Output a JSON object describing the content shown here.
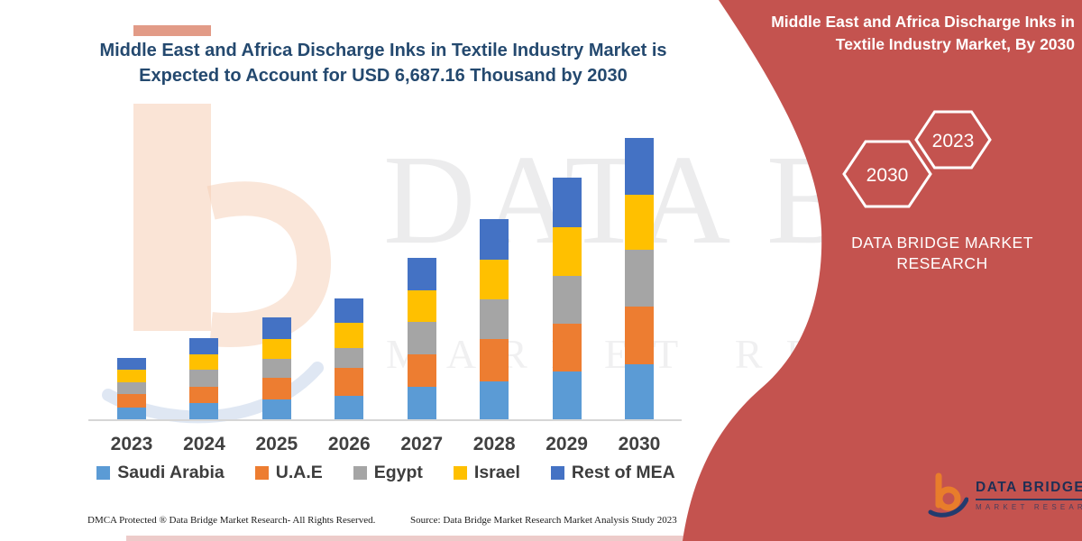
{
  "colors": {
    "panel_red": "#C4534F",
    "title_navy": "#24496F",
    "axis_gray": "#D6D6D6",
    "year_label_gray": "#404040",
    "legend_text_gray": "#3D3D3D",
    "logo_navy": "#1E2F55",
    "logo_orange": "#E87D2B",
    "watermark_peach": "#F6CDB4",
    "watermark_blue": "#B7C9E5"
  },
  "header": {
    "title_line1": "Middle East and Africa Discharge Inks in Textile Industry Market is",
    "title_line2": "Expected to Account for USD 6,687.16 Thousand by 2030"
  },
  "panel": {
    "title_line1": "Middle East and Africa Discharge Inks in",
    "title_line2": "Textile Industry Market, By 2030",
    "hexagon_left_label": "2030",
    "hexagon_right_label": "2023",
    "brand_line1": "DATA BRIDGE MARKET",
    "brand_line2": "RESEARCH"
  },
  "chart_data": {
    "type": "bar",
    "stacked": true,
    "stack_order": "bottom-to-top",
    "title": "Middle East and Africa Discharge Inks in Textile Industry Market is Expected to Account for USD 6,687.16 Thousand by 2030",
    "xlabel": "",
    "ylabel": "",
    "units": "USD Thousand",
    "ylim": [
      0,
      6700
    ],
    "gridlines": false,
    "legend_position": "bottom",
    "categories": [
      "2023",
      "2024",
      "2025",
      "2026",
      "2027",
      "2028",
      "2029",
      "2030"
    ],
    "series": [
      {
        "name": "Saudi Arabia",
        "color": "#5B9BD5",
        "values": [
          278.6,
          385.8,
          471.5,
          557.2,
          771.5,
          900.1,
          1135.8,
          1307.3
        ]
      },
      {
        "name": "U.A.E",
        "color": "#ED7D31",
        "values": [
          321.5,
          385.8,
          514.4,
          664.3,
          771.5,
          1007.2,
          1135.8,
          1371.6
        ]
      },
      {
        "name": "Egypt",
        "color": "#A5A5A5",
        "values": [
          278.6,
          407.2,
          450.1,
          471.5,
          771.5,
          942.9,
          1135.8,
          1350.2
        ]
      },
      {
        "name": "Israel",
        "color": "#FFC000",
        "values": [
          300.0,
          364.3,
          471.5,
          600.0,
          750.1,
          942.9,
          1157.2,
          1307.3
        ]
      },
      {
        "name": "Rest of MEA",
        "color": "#4472C4",
        "values": [
          278.6,
          385.8,
          514.4,
          578.6,
          771.5,
          964.4,
          1178.7,
          1350.8
        ]
      }
    ],
    "estimated_totals": [
      1457,
      1929,
      2422,
      2872,
      3836,
      4758,
      5744,
      6687.16
    ],
    "annotation_total_2030": 6687.16
  },
  "watermarks": {
    "big_text": "DATA BRIDGE",
    "spaced_text": "MARKET RESEARCH"
  },
  "logo": {
    "name": "DATA BRIDGE",
    "subtitle": "MARKET RESEARCH"
  },
  "footer": {
    "dmca": "DMCA Protected ® Data Bridge Market Research-  All Rights Reserved.",
    "source": "Source: Data Bridge Market Research  Market Analysis Study 2023"
  }
}
